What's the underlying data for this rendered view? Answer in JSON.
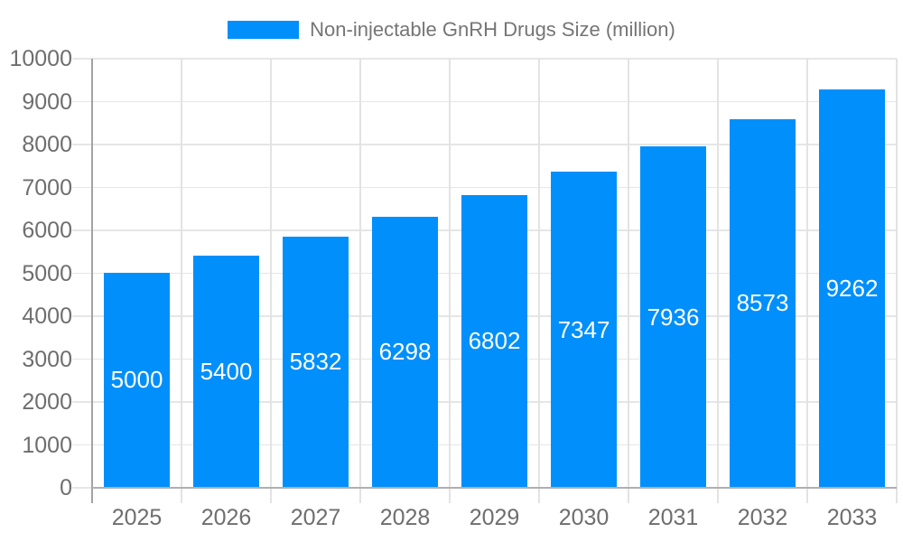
{
  "chart_data": {
    "type": "bar",
    "title": "Non-injectable GnRH Drugs Size (million)",
    "categories": [
      "2025",
      "2026",
      "2027",
      "2028",
      "2029",
      "2030",
      "2031",
      "2032",
      "2033"
    ],
    "values": [
      5000,
      5400,
      5832,
      6298,
      6802,
      7347,
      7936,
      8573,
      9262
    ],
    "series_name": "Non-injectable GnRH Drugs Size (million)",
    "xlabel": "",
    "ylabel": "",
    "ylim": [
      0,
      10000
    ],
    "ytick_step": 1000,
    "y_tick_labels": [
      "0",
      "1000",
      "2000",
      "3000",
      "4000",
      "5000",
      "6000",
      "7000",
      "8000",
      "9000",
      "10000"
    ],
    "grid": true,
    "legend_position": "top",
    "value_labels": "inside-center",
    "colors": {
      "bar": "#008FFB",
      "bar_value_text": "#ffffff",
      "axis_text": "#6e6e6e",
      "legend_text": "#757575",
      "grid_line": "#e6e6e6",
      "vertical_grid_line": "#e3e3e3",
      "y_axis_line": "#a3a3a3",
      "x_axis_line": "#b0b0b0",
      "background": "#ffffff"
    }
  }
}
